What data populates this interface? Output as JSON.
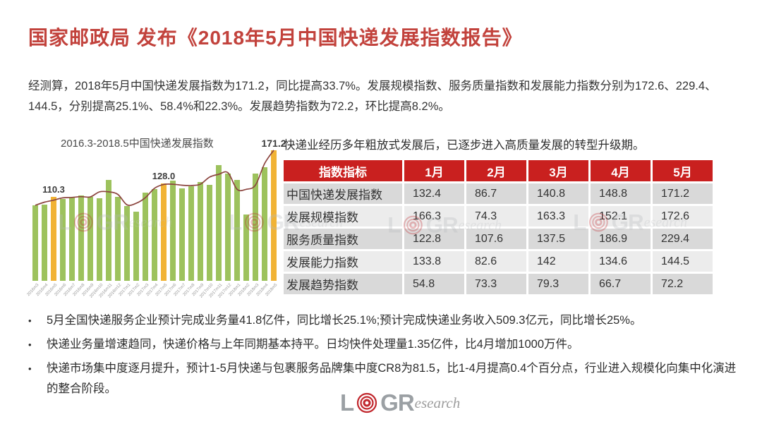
{
  "title": "国家邮政局 发布《2018年5月中国快递发展指数报告》",
  "intro": "经测算，2018年5月中国快递发展指数为171.2，同比提高33.7%。发展规模指数、服务质量指数和发展能力指数分别为172.6、229.4、144.5，分别提高25.1%、58.4%和22.3%。发展趋势指数为72.2，环比提高8.2%。",
  "chart_data": {
    "type": "bar",
    "title": "2016.3-2018.5中国快递发展指数",
    "categories": [
      "2016m3",
      "2016m4",
      "2016m5",
      "2016m6",
      "2016m7",
      "2016m8",
      "2016m9",
      "2016m10",
      "2016m11",
      "2016m12",
      "2017m1",
      "2017m2",
      "2017m3",
      "2017m4",
      "2017m5",
      "2017m6",
      "2017m7",
      "2017m8",
      "2017m9",
      "2017m10",
      "2017m11",
      "2017m12",
      "2018m1",
      "2018m2",
      "2018m3",
      "2018m4",
      "2018m5"
    ],
    "values": [
      99,
      100,
      110.3,
      107,
      109,
      112,
      110,
      108,
      132,
      110,
      98,
      91,
      116,
      120,
      128,
      131,
      121,
      124,
      130,
      126,
      152,
      141,
      132.4,
      86.7,
      140.8,
      148.8,
      171.2
    ],
    "highlight_indices": [
      2,
      14,
      26
    ],
    "annotations": [
      {
        "index": 2,
        "text": "110.3",
        "big": false
      },
      {
        "index": 14,
        "text": "128.0",
        "big": false
      },
      {
        "index": 26,
        "text": "171.2",
        "big": true
      }
    ],
    "ylim": [
      0,
      185
    ],
    "bar_color": "#9dc25d",
    "highlight_color": "#f1b335",
    "line_color": "#8c453f",
    "trend_line": true,
    "legend": "none",
    "grid": false
  },
  "table_note": "快递业经历多年粗放式发展后，已逐步进入高质量发展的转型升级期。",
  "table": {
    "header": [
      "指数指标",
      "1月",
      "2月",
      "3月",
      "4月",
      "5月"
    ],
    "rows": [
      [
        "中国快递发展指数",
        "132.4",
        "86.7",
        "140.8",
        "148.8",
        "171.2"
      ],
      [
        "发展规模指数",
        "166.3",
        "74.3",
        "163.3",
        "152.1",
        "172.6"
      ],
      [
        "服务质量指数",
        "122.8",
        "107.6",
        "137.5",
        "186.9",
        "229.4"
      ],
      [
        "发展能力指数",
        "133.8",
        "82.6",
        "142",
        "134.6",
        "144.5"
      ],
      [
        "发展趋势指数",
        "54.8",
        "73.3",
        "79.3",
        "66.7",
        "72.2"
      ]
    ],
    "header_bg": "#c9201f",
    "row_bg_odd": "#d9d9d9",
    "row_bg_even": "#ececec"
  },
  "bullets": [
    "5月全国快递服务企业预计完成业务量41.8亿件，同比增长25.1%;预计完成快递业务收入509.3亿元，同比增长25%。",
    "快递业务量增速趋同，快递价格与上年同期基本持平。日均快件处理量1.35亿件，比4月增加1000万件。",
    "快递市场集中度逐月提升，预计1-5月快递与包裹服务品牌集中度CR8为81.5，比1-4月提高0.4个百分点，行业进入规模化向集中化演进的整合阶段。"
  ],
  "logo": {
    "part_l": "L",
    "part_gr": "GR",
    "part_rest": "esearch",
    "ring_color": "#c1272d",
    "text_color": "#9ba0a4"
  },
  "colors": {
    "title_red": "#c2423c",
    "accent_red": "#c9201f",
    "bar_green": "#9dc25d",
    "bar_yellow": "#f1b335",
    "trend_red": "#8c453f"
  }
}
